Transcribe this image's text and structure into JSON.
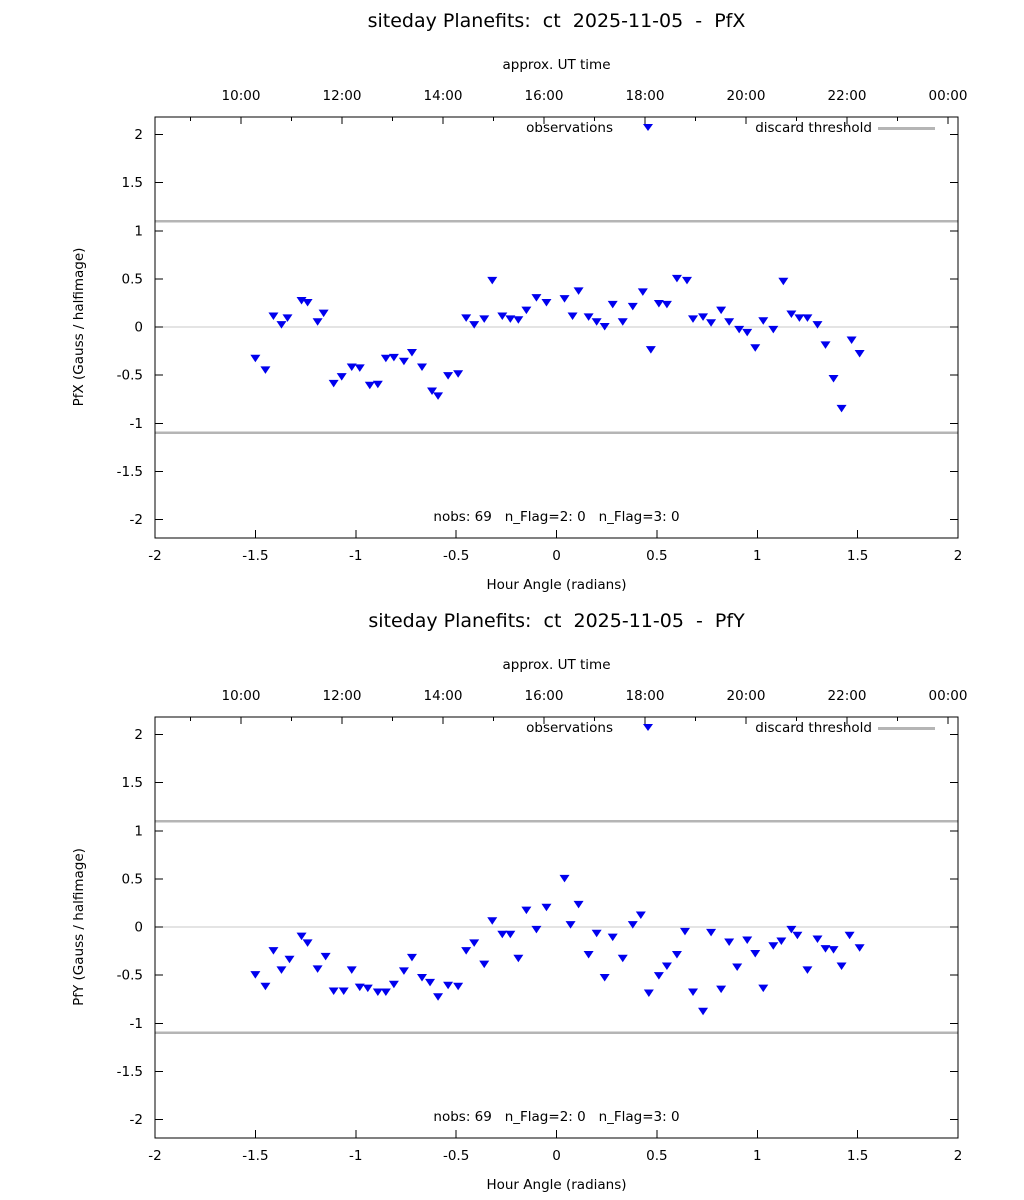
{
  "colors": {
    "marker_blue": "#0000ee",
    "threshold_gray": "#b5b5b5",
    "zero_line_gray": "#c9c9c9",
    "frame_black": "#000000"
  },
  "chart_data": [
    {
      "type": "scatter",
      "title": "siteday Planefits:  ct  2025-11-05  -  PfX",
      "top_axis_label": "approx. UT time",
      "xlabel": "Hour Angle (radians)",
      "ylabel": "PfX (Gauss / halfimage)",
      "annotation": "nobs: 69   n_Flag=2: 0   n_Flag=3: 0",
      "legend": [
        {
          "label": "observations",
          "marker": "triangle-down"
        },
        {
          "label": "discard threshold",
          "marker": "line"
        }
      ],
      "xlim": [
        -2,
        2
      ],
      "ylim": [
        -2.19,
        2.19
      ],
      "grid": "off",
      "legend_position": "top-inside",
      "x_ticks": {
        "values": [
          -2,
          -1.5,
          -1,
          -0.5,
          0,
          0.5,
          1,
          1.5,
          2
        ],
        "labels": [
          "-2",
          "-1.5",
          "-1",
          "-0.5",
          "0",
          "0.5",
          "1",
          "1.5",
          "2"
        ]
      },
      "y_ticks": {
        "values": [
          2,
          1.5,
          1,
          0.5,
          0,
          -0.5,
          -1,
          -1.5,
          -2
        ],
        "labels": [
          "2",
          "1.5",
          "1",
          "0.5",
          "0",
          "-0.5",
          "-1",
          "-1.5",
          "-2"
        ]
      },
      "top_ticks": {
        "major_hours": [
          10,
          12,
          14,
          16,
          18,
          20,
          22,
          24
        ],
        "minor_hours": [
          9,
          11,
          13,
          15,
          17,
          19,
          21,
          23
        ],
        "labels": [
          "10:00",
          "12:00",
          "14:00",
          "16:00",
          "18:00",
          "20:00",
          "22:00",
          "00:00"
        ]
      },
      "discard_thresholds": [
        1.1,
        -1.1
      ],
      "zero_line": 0,
      "points": [
        [
          -1.5,
          -0.32
        ],
        [
          -1.45,
          -0.44
        ],
        [
          -1.41,
          0.12
        ],
        [
          -1.37,
          0.03
        ],
        [
          -1.34,
          0.1
        ],
        [
          -1.27,
          0.28
        ],
        [
          -1.24,
          0.26
        ],
        [
          -1.19,
          0.06
        ],
        [
          -1.16,
          0.15
        ],
        [
          -1.11,
          -0.58
        ],
        [
          -1.07,
          -0.51
        ],
        [
          -1.02,
          -0.41
        ],
        [
          -0.98,
          -0.42
        ],
        [
          -0.93,
          -0.6
        ],
        [
          -0.89,
          -0.59
        ],
        [
          -0.85,
          -0.32
        ],
        [
          -0.81,
          -0.31
        ],
        [
          -0.76,
          -0.35
        ],
        [
          -0.72,
          -0.26
        ],
        [
          -0.67,
          -0.41
        ],
        [
          -0.62,
          -0.66
        ],
        [
          -0.59,
          -0.71
        ],
        [
          -0.54,
          -0.5
        ],
        [
          -0.49,
          -0.48
        ],
        [
          -0.45,
          0.1
        ],
        [
          -0.41,
          0.03
        ],
        [
          -0.36,
          0.09
        ],
        [
          -0.32,
          0.49
        ],
        [
          -0.27,
          0.12
        ],
        [
          -0.23,
          0.09
        ],
        [
          -0.19,
          0.08
        ],
        [
          -0.15,
          0.18
        ],
        [
          -0.1,
          0.31
        ],
        [
          -0.05,
          0.26
        ],
        [
          0.04,
          0.3
        ],
        [
          0.08,
          0.12
        ],
        [
          0.11,
          0.38
        ],
        [
          0.16,
          0.11
        ],
        [
          0.2,
          0.06
        ],
        [
          0.24,
          0.01
        ],
        [
          0.28,
          0.24
        ],
        [
          0.33,
          0.06
        ],
        [
          0.38,
          0.22
        ],
        [
          0.43,
          0.37
        ],
        [
          0.47,
          -0.23
        ],
        [
          0.51,
          0.25
        ],
        [
          0.55,
          0.24
        ],
        [
          0.6,
          0.51
        ],
        [
          0.65,
          0.49
        ],
        [
          0.68,
          0.09
        ],
        [
          0.73,
          0.11
        ],
        [
          0.77,
          0.05
        ],
        [
          0.82,
          0.18
        ],
        [
          0.86,
          0.06
        ],
        [
          0.91,
          -0.02
        ],
        [
          0.95,
          -0.05
        ],
        [
          0.99,
          -0.21
        ],
        [
          1.03,
          0.07
        ],
        [
          1.08,
          -0.02
        ],
        [
          1.13,
          0.48
        ],
        [
          1.17,
          0.14
        ],
        [
          1.21,
          0.1
        ],
        [
          1.25,
          0.1
        ],
        [
          1.3,
          0.03
        ],
        [
          1.34,
          -0.18
        ],
        [
          1.38,
          -0.53
        ],
        [
          1.42,
          -0.84
        ],
        [
          1.47,
          -0.13
        ],
        [
          1.51,
          -0.27
        ]
      ]
    },
    {
      "type": "scatter",
      "title": "siteday Planefits:  ct  2025-11-05  -  PfY",
      "top_axis_label": "approx. UT time",
      "xlabel": "Hour Angle (radians)",
      "ylabel": "PfY (Gauss / halfimage)",
      "annotation": "nobs: 69   n_Flag=2: 0   n_Flag=3: 0",
      "legend": [
        {
          "label": "observations",
          "marker": "triangle-down"
        },
        {
          "label": "discard threshold",
          "marker": "line"
        }
      ],
      "xlim": [
        -2,
        2
      ],
      "ylim": [
        -2.19,
        2.19
      ],
      "grid": "off",
      "legend_position": "top-inside",
      "x_ticks": {
        "values": [
          -2,
          -1.5,
          -1,
          -0.5,
          0,
          0.5,
          1,
          1.5,
          2
        ],
        "labels": [
          "-2",
          "-1.5",
          "-1",
          "-0.5",
          "0",
          "0.5",
          "1",
          "1.5",
          "2"
        ]
      },
      "y_ticks": {
        "values": [
          2,
          1.5,
          1,
          0.5,
          0,
          -0.5,
          -1,
          -1.5,
          -2
        ],
        "labels": [
          "2",
          "1.5",
          "1",
          "0.5",
          "0",
          "-0.5",
          "-1",
          "-1.5",
          "-2"
        ]
      },
      "top_ticks": {
        "major_hours": [
          10,
          12,
          14,
          16,
          18,
          20,
          22,
          24
        ],
        "minor_hours": [
          9,
          11,
          13,
          15,
          17,
          19,
          21,
          23
        ],
        "labels": [
          "10:00",
          "12:00",
          "14:00",
          "16:00",
          "18:00",
          "20:00",
          "22:00",
          "00:00"
        ]
      },
      "discard_thresholds": [
        1.1,
        -1.1
      ],
      "zero_line": 0,
      "points": [
        [
          -1.5,
          -0.49
        ],
        [
          -1.45,
          -0.61
        ],
        [
          -1.41,
          -0.24
        ],
        [
          -1.37,
          -0.44
        ],
        [
          -1.33,
          -0.33
        ],
        [
          -1.27,
          -0.09
        ],
        [
          -1.24,
          -0.16
        ],
        [
          -1.19,
          -0.43
        ],
        [
          -1.15,
          -0.3
        ],
        [
          -1.11,
          -0.66
        ],
        [
          -1.06,
          -0.66
        ],
        [
          -1.02,
          -0.44
        ],
        [
          -0.98,
          -0.62
        ],
        [
          -0.94,
          -0.63
        ],
        [
          -0.89,
          -0.67
        ],
        [
          -0.85,
          -0.67
        ],
        [
          -0.81,
          -0.59
        ],
        [
          -0.76,
          -0.45
        ],
        [
          -0.72,
          -0.31
        ],
        [
          -0.67,
          -0.52
        ],
        [
          -0.63,
          -0.57
        ],
        [
          -0.59,
          -0.72
        ],
        [
          -0.54,
          -0.6
        ],
        [
          -0.49,
          -0.61
        ],
        [
          -0.45,
          -0.24
        ],
        [
          -0.41,
          -0.16
        ],
        [
          -0.36,
          -0.38
        ],
        [
          -0.32,
          0.07
        ],
        [
          -0.27,
          -0.07
        ],
        [
          -0.23,
          -0.07
        ],
        [
          -0.19,
          -0.32
        ],
        [
          -0.15,
          0.18
        ],
        [
          -0.1,
          -0.02
        ],
        [
          -0.05,
          0.21
        ],
        [
          0.04,
          0.51
        ],
        [
          0.07,
          0.03
        ],
        [
          0.11,
          0.24
        ],
        [
          0.16,
          -0.28
        ],
        [
          0.2,
          -0.06
        ],
        [
          0.24,
          -0.52
        ],
        [
          0.28,
          -0.1
        ],
        [
          0.33,
          -0.32
        ],
        [
          0.38,
          0.03
        ],
        [
          0.42,
          0.13
        ],
        [
          0.46,
          -0.68
        ],
        [
          0.51,
          -0.5
        ],
        [
          0.55,
          -0.4
        ],
        [
          0.6,
          -0.28
        ],
        [
          0.64,
          -0.04
        ],
        [
          0.68,
          -0.67
        ],
        [
          0.73,
          -0.87
        ],
        [
          0.77,
          -0.05
        ],
        [
          0.82,
          -0.64
        ],
        [
          0.86,
          -0.15
        ],
        [
          0.9,
          -0.41
        ],
        [
          0.95,
          -0.13
        ],
        [
          0.99,
          -0.27
        ],
        [
          1.03,
          -0.63
        ],
        [
          1.08,
          -0.19
        ],
        [
          1.12,
          -0.14
        ],
        [
          1.17,
          -0.02
        ],
        [
          1.2,
          -0.08
        ],
        [
          1.25,
          -0.44
        ],
        [
          1.3,
          -0.12
        ],
        [
          1.34,
          -0.22
        ],
        [
          1.38,
          -0.23
        ],
        [
          1.42,
          -0.4
        ],
        [
          1.46,
          -0.08
        ],
        [
          1.51,
          -0.21
        ]
      ]
    }
  ]
}
